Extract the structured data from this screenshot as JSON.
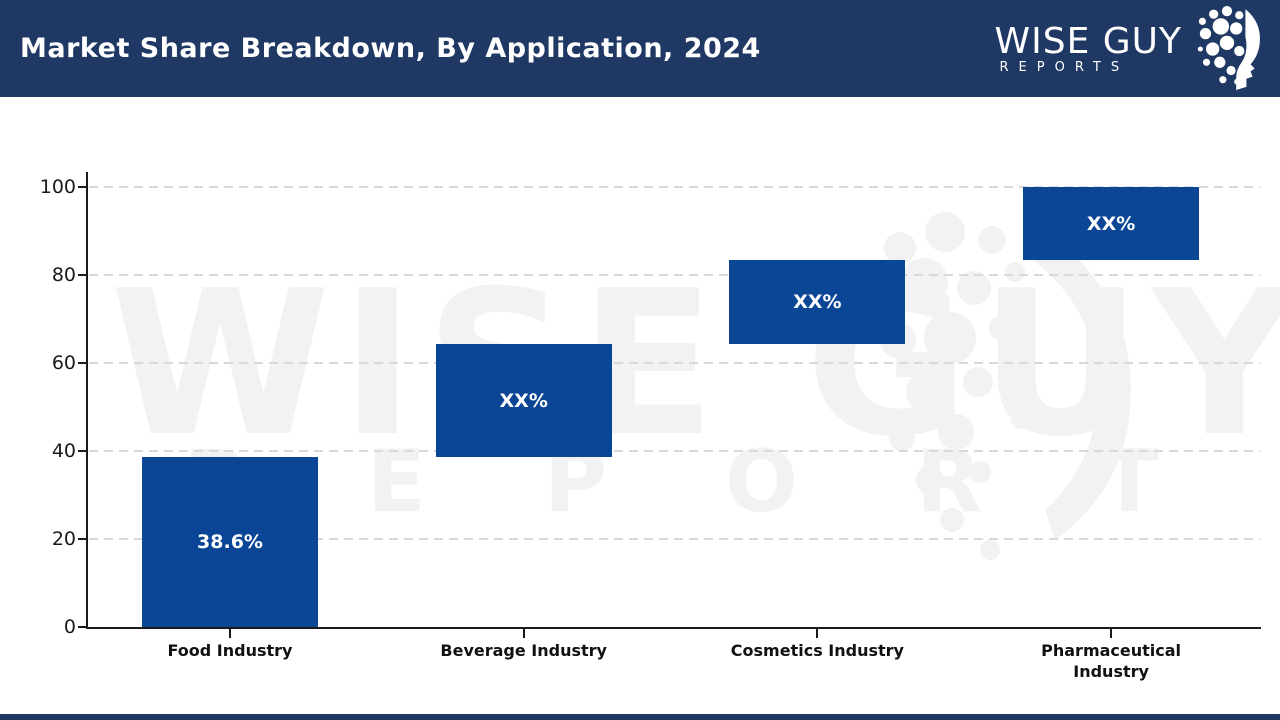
{
  "header": {
    "title": "Market Share Breakdown, By Application, 2024",
    "logo": {
      "line1": "WISE GUY",
      "line2": "REPORTS"
    }
  },
  "watermark": {
    "line1": "WISE GUY",
    "line2": "R E P O R T S"
  },
  "chart_data": {
    "type": "bar",
    "variant": "floating-waterfall",
    "title": "Market Share Breakdown, By Application, 2024",
    "categories": [
      "Food Industry",
      "Beverage Industry",
      "Cosmetics Industry",
      "Pharmaceutical Industry"
    ],
    "segments": [
      {
        "category": "Food Industry",
        "start": 0,
        "end": 38.6,
        "label": "38.6%"
      },
      {
        "category": "Beverage Industry",
        "start": 38.6,
        "end": 64.3,
        "label": "XX%"
      },
      {
        "category": "Cosmetics Industry",
        "start": 64.3,
        "end": 83.4,
        "label": "XX%"
      },
      {
        "category": "Pharmaceutical Industry",
        "start": 83.4,
        "end": 100,
        "label": "XX%"
      }
    ],
    "ylim": [
      0,
      100
    ],
    "yticks": [
      0,
      20,
      40,
      60,
      80,
      100
    ],
    "grid": true,
    "legend": false,
    "xlabel": "",
    "ylabel": ""
  },
  "colors": {
    "header_bg": "#1f3864",
    "footer_bg": "#1f3864",
    "bar": "#0b4596",
    "value_label": "#ffffff",
    "axis": "#1a1a1a",
    "grid": "#d9d9d9",
    "watermark": "#f2f2f2"
  }
}
